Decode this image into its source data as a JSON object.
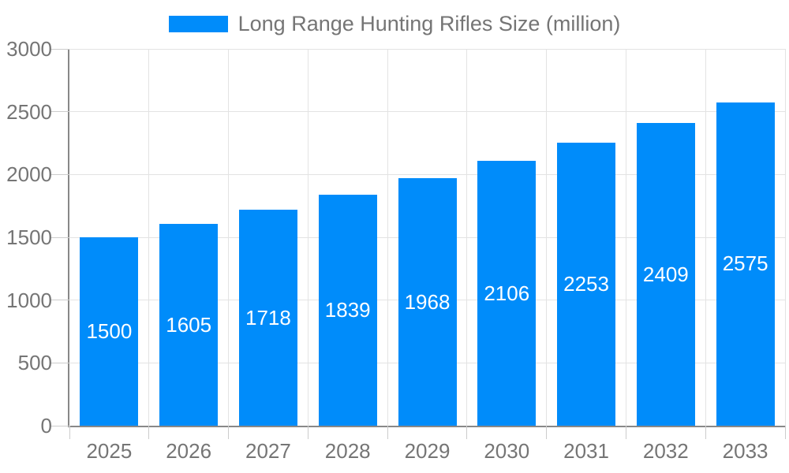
{
  "chart_data": {
    "type": "bar",
    "title": "",
    "legend": "Long Range Hunting Rifles Size (million)",
    "legend_position": "top-center",
    "categories": [
      "2025",
      "2026",
      "2027",
      "2028",
      "2029",
      "2030",
      "2031",
      "2032",
      "2033"
    ],
    "values": [
      1500,
      1605,
      1718,
      1839,
      1968,
      2106,
      2253,
      2409,
      2575
    ],
    "xlabel": "",
    "ylabel": "",
    "ylim": [
      0,
      3000
    ],
    "yticks": [
      0,
      500,
      1000,
      1500,
      2000,
      2500,
      3000
    ],
    "grid": true,
    "value_labels_inside_bars": true,
    "colors": {
      "bar": "#008CFA",
      "value_label": "#FFFFFF",
      "axis": "#888888",
      "gridline": "#E3E3E3",
      "tick": "#CCCCCC",
      "text": "#757575"
    }
  }
}
